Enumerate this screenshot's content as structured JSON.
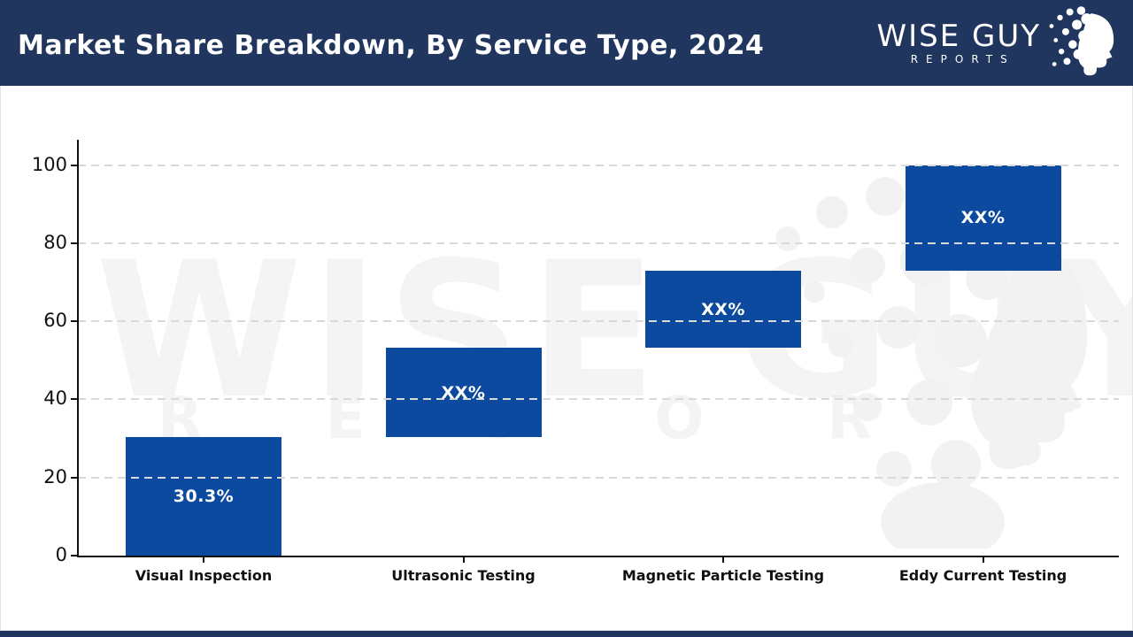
{
  "header": {
    "title": "Market Share Breakdown, By Service Type, 2024",
    "logo_line1": "WISE GUY",
    "logo_line2": "REPORTS"
  },
  "watermark": {
    "line1": "WISE GUY",
    "line2": "R E P O R T S"
  },
  "colors": {
    "header_bg": "#21365F",
    "bar": "#0B4A9F",
    "grid": "#D9D9D9",
    "axis": "#111111",
    "bar_label_text": "#FFFFFF"
  },
  "chart_data": {
    "type": "bar",
    "subtype": "waterfall",
    "title": "Market Share Breakdown, By Service Type, 2024",
    "categories": [
      "Visual Inspection",
      "Ultrasonic Testing",
      "Magnetic Particle Testing",
      "Eddy Current Testing"
    ],
    "segments": [
      {
        "category": "Visual Inspection",
        "start": 0,
        "end": 30.3,
        "label": "30.3%"
      },
      {
        "category": "Ultrasonic Testing",
        "start": 30.3,
        "end": 53.3,
        "label": "XX%"
      },
      {
        "category": "Magnetic Particle Testing",
        "start": 53.3,
        "end": 72.9,
        "label": "XX%"
      },
      {
        "category": "Eddy Current Testing",
        "start": 72.9,
        "end": 100,
        "label": "XX%"
      }
    ],
    "yticks": [
      0,
      20,
      40,
      60,
      80,
      100
    ],
    "ylim": [
      0,
      105
    ],
    "xlabel": "",
    "ylabel": "",
    "legend": "none",
    "grid": "horizontal-dashed"
  }
}
